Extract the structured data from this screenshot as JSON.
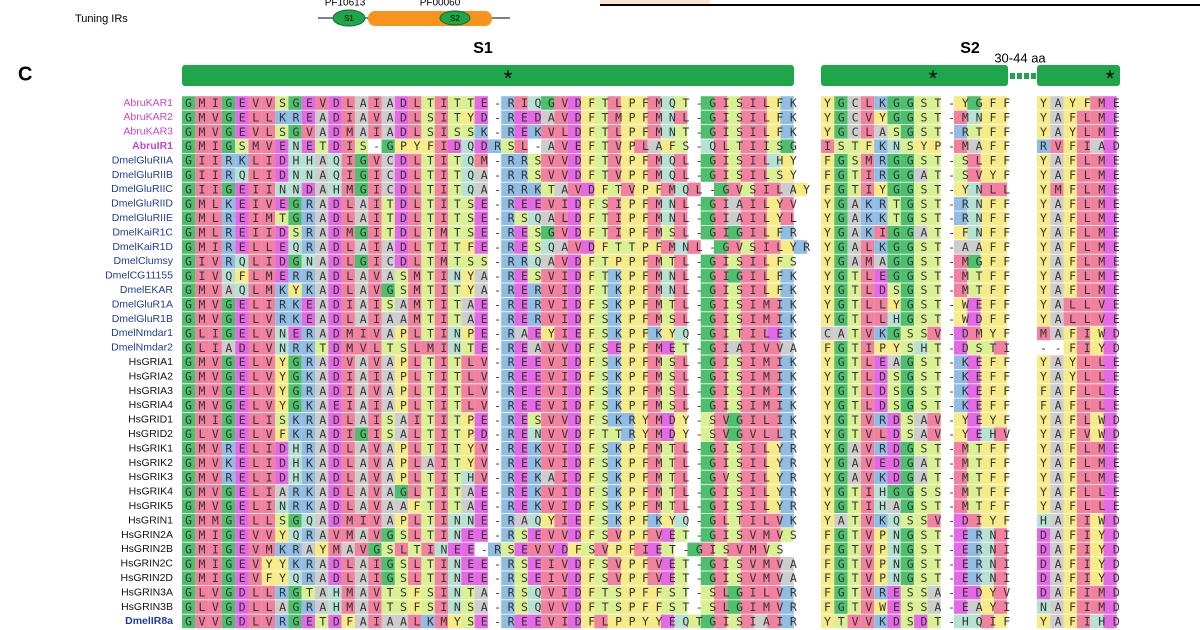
{
  "header": {
    "row_label": "Tuning IRs",
    "domains": [
      {
        "id": "PF10613",
        "segment": "S1"
      },
      {
        "id": "PF00060",
        "segment": "S2"
      }
    ]
  },
  "panel_label": "C",
  "segments": {
    "s1": "S1",
    "s2": "S2",
    "gap": "30-44 aa",
    "marker": "*"
  },
  "alignment": {
    "rows": [
      {
        "name": "AbruKAR1",
        "color": "#c845c8",
        "bold": false,
        "s1": "GMIGEVVSGEVDLAIADLTITTE-RIQGVDFTLPFMQT-GISILFK",
        "s2": "YGCLKGGST-YGFF",
        "s3": "YAYFME"
      },
      {
        "name": "AbruKAR2",
        "color": "#c845c8",
        "bold": false,
        "s1": "GMVGELLKREADIAVADLSITYD-REDAVDFTMPFMNL-GISILFK",
        "s2": "YGCVYGGST-MNFF",
        "s3": "YAFLME"
      },
      {
        "name": "AbruKAR3",
        "color": "#c845c8",
        "bold": false,
        "s1": "GMVGEVLSGVADMAIADLSISSK-REKVLDFTLPFMNT-GISILFK",
        "s2": "YGCLASGST-RTFF",
        "s3": "YAYLME"
      },
      {
        "name": "AbruIR1",
        "color": "#c845c8",
        "bold": true,
        "s1": "GMIGSMVENETDIS-GPYFIDQDRSL-AVEFTVPLAFS-QLTIISG",
        "s2": "ISTFKNSYP-MAFF",
        "s3": "RVFIAD"
      },
      {
        "name": "DmelGluRIIA",
        "color": "#1f3c9c",
        "bold": false,
        "s1": "GIIRKLIDHHAQIGVCDLTITQM-RRSVVDFTVPFMQL-GISILHY",
        "s2": "FGSMRGGST-SLFF",
        "s3": "YAFLME"
      },
      {
        "name": "DmelGluRIIB",
        "color": "#1f3c9c",
        "bold": false,
        "s1": "GIIRQLIDNNAQIGICDLTITQA-RRSVVDFTVPFMQL-GISILSY",
        "s2": "FGTIRGGAT-SVYF",
        "s3": "YAFLME"
      },
      {
        "name": "DmelGluRIIC",
        "color": "#1f3c9c",
        "bold": false,
        "s1": "GIIGEIINNDAHMGICDLTITQA-RRKTAVDFTVPFMQL-GVSILAY",
        "s2": "FGTIYGGST-YNLL",
        "s3": "YMFLME"
      },
      {
        "name": "DmelGluRIID",
        "color": "#1f3c9c",
        "bold": false,
        "s1": "GMLKEIVEGRADLAITDLTITSE-REEVIDFSIPFMNL-GIAILYV",
        "s2": "YGAKRTGST-RNFF",
        "s3": "YAFLME"
      },
      {
        "name": "DmelGluRIIE",
        "color": "#1f3c9c",
        "bold": false,
        "s1": "GMLREIMTGRADLAITDLTITSE-RSQALDFTIPFMNL-GIAILYL",
        "s2": "YGAKKTGST-RNFF",
        "s3": "YAFLME"
      },
      {
        "name": "DmelKaiR1C",
        "color": "#1f3c9c",
        "bold": false,
        "s1": "GMLREIIDSRADMGITDLTMTSE-RESGVDFTIPFMSL-GIGILFR",
        "s2": "YGAKIGGAT-FNFF",
        "s3": "YAFLME"
      },
      {
        "name": "DmelKaiR1D",
        "color": "#1f3c9c",
        "bold": false,
        "s1": "GMIRELLEQRADLAIADLTITFE-RESQAVDFTTPFMNL-GVSILYR",
        "s2": "YGALKGGST-AAFF",
        "s3": "YAFLME"
      },
      {
        "name": "DmelClumsy",
        "color": "#1f3c9c",
        "bold": false,
        "s1": "GIVRQLIDGNADLGICDLTMTSS-RRQAVDFTPPFMTL-GISILFS",
        "s2": "YGAMAGGST-MGFF",
        "s3": "YAFLME"
      },
      {
        "name": "DmelCG11155",
        "color": "#1f3c9c",
        "bold": false,
        "s1": "GIVQFLMERRADLAVASMTINYA-RESVIDFTKPFMNL-GIGILFK",
        "s2": "YGTLEGGST-MTFF",
        "s3": "YAFLME"
      },
      {
        "name": "DmelEKAR",
        "color": "#1f3c9c",
        "bold": false,
        "s1": "GMVAQLMKYKADLAVGSMTITYA-RERVIDFTKPFMNL-GISILFK",
        "s2": "YGTLDSGST-MTFF",
        "s3": "YAFLME"
      },
      {
        "name": "DmelGluR1A",
        "color": "#1f3c9c",
        "bold": false,
        "s1": "GMVGELIRKEADIAISAMTITAE-RERVIDFSKPFMTL-GISIMIK",
        "s2": "YGTLLYGST-WEFF",
        "s3": "YALLVE"
      },
      {
        "name": "DmelGluR1B",
        "color": "#1f3c9c",
        "bold": false,
        "s1": "GMVGELVRKEADLAIAAMTITAE-RERVIDFSKPFMSL-GISIMIK",
        "s2": "YGTLLHGST-WDFF",
        "s3": "YALLVE"
      },
      {
        "name": "DmelNmdar1",
        "color": "#1f3c9c",
        "bold": false,
        "s1": "GLIGELVNERADMIVAPLTINPE-RAEYIEFSKPFKYQ-GITILEK",
        "s2": "CATVKGSSV-DMYF",
        "s3": "MAFIWD"
      },
      {
        "name": "DmelNmdar2",
        "color": "#1f3c9c",
        "bold": false,
        "s1": "GLIADLVNRKTDMVLTSLMINTE-REAVVDFSEPFMET-GIAIVVA",
        "s2": "FGTIPYSHT-DSTI",
        "s3": "--FIYD"
      },
      {
        "name": "HsGRIA1",
        "color": "#111111",
        "bold": false,
        "s1": "GMVGELVYGRADVAVAPLTITLV-REEVIDFSKPFMSL-GISIMIK",
        "s2": "YGTLEAGST-KEFF",
        "s3": "YAYLLE"
      },
      {
        "name": "HsGRIA2",
        "color": "#111111",
        "bold": false,
        "s1": "GMVGELVYGKADIAIAPLTITLV-REEVIDFSKPFMSL-GISIMIK",
        "s2": "YGTLDSGST-KEFF",
        "s3": "YAYLLE"
      },
      {
        "name": "HsGRIA3",
        "color": "#111111",
        "bold": false,
        "s1": "GMVGELVYGRADIAVAPLTITLV-REEVIDFSKPFMSL-GISIMIK",
        "s2": "YGTLDSGST-KEFF",
        "s3": "FAFLLE"
      },
      {
        "name": "HsGRIA4",
        "color": "#111111",
        "bold": false,
        "s1": "GMVGELVYGKAEIAIAPLTITLV-REEVIDFSKPFMSL-GISIMIK",
        "s2": "YGTLDSGST-KEFF",
        "s3": "FAFLLE"
      },
      {
        "name": "HsGRID1",
        "color": "#111111",
        "bold": false,
        "s1": "GMIGELISKRADLAISAITITPE-RESVVDFSKRYMDY-SVGILIK",
        "s2": "YGTVRDSAV-YEYF",
        "s3": "YAFLWD"
      },
      {
        "name": "HsGRID2",
        "color": "#111111",
        "bold": false,
        "s1": "GLVGELVFKRADIGISALTITPD-RENVVDFTTRYMDY-SVGVLLR",
        "s2": "YGTVLDSAV-YEHV",
        "s3": "YAFVWD"
      },
      {
        "name": "HsGRIK1",
        "color": "#111111",
        "bold": false,
        "s1": "GMVRELIDHRADLAVAPLTITYV-REKVIDFSKPFMTL-GISILYR",
        "s2": "YGAVRDGST-MTFF",
        "s3": "YAFLME"
      },
      {
        "name": "HsGRIK2",
        "color": "#111111",
        "bold": false,
        "s1": "GMVKELIDHKADLAVAPLAITYV-REKVIDFSKPFMTL-GISILYR",
        "s2": "YGAVEDGAT-MTFF",
        "s3": "YAFLME"
      },
      {
        "name": "HsGRIK3",
        "color": "#111111",
        "bold": false,
        "s1": "GMVRELIDHKADLAVAPLTITHV-REKAIDFSKPFMTL-GVSILYR",
        "s2": "YGAVKDGAT-MTFF",
        "s3": "YAFLME"
      },
      {
        "name": "HsGRIK4",
        "color": "#111111",
        "bold": false,
        "s1": "GMVGELIARKADLAVAGLTITAE-REKVIDFSKPFMTL-GISILYR",
        "s2": "YGTIHGGSS-MTFF",
        "s3": "YAFLLE"
      },
      {
        "name": "HsGRIK5",
        "color": "#111111",
        "bold": false,
        "s1": "GMVGELINRKADLAVAAFTITAE-REKVIDFSKPFMTL-GISILYR",
        "s2": "YGTIHAGST-MTFF",
        "s3": "YAFLLE"
      },
      {
        "name": "HsGRIN1",
        "color": "#111111",
        "bold": false,
        "s1": "GMMGELLSGQADMIVAPLTINNE-RAQYIEFSKPFKYQ-GLTILVK",
        "s2": "YATVKQSSV-DIYF",
        "s3": "HAFIWD"
      },
      {
        "name": "HsGRIN2A",
        "color": "#111111",
        "bold": false,
        "s1": "GMIGEVVYQRAVMAVGSLTINEE-RSEVVDFSVPFVET-GISVMVS",
        "s2": "FGTVPNGST-ERNI",
        "s3": "DAFIYD"
      },
      {
        "name": "HsGRIN2B",
        "color": "#111111",
        "bold": false,
        "s1": "GMIGEVMKRAYMAVGSLTINEE-RSEVVDFSVPFIET-GISVMVS",
        "s2": "FGTVPNGST-ERNI",
        "s3": "DAFIYD"
      },
      {
        "name": "HsGRIN2C",
        "color": "#111111",
        "bold": false,
        "s1": "GMIGEVYYKRADLAIGSLTINEE-RSEIVDFSVPFVET-GISVMVA",
        "s2": "FGTVPNGST-ERNI",
        "s3": "DAFIYD"
      },
      {
        "name": "HsGRIN2D",
        "color": "#111111",
        "bold": false,
        "s1": "GMIGEVFYQRADLAIGSLTINEE-RSEIVDFSVPFVET-GISVMVA",
        "s2": "FGTVPNGST-EKNI",
        "s3": "DAFIYD"
      },
      {
        "name": "HsGRIN3A",
        "color": "#111111",
        "bold": false,
        "s1": "GLVGDLLRGTAHMAVTSFSINTA-RSQVIDFTSPFFST-SLGILVR",
        "s2": "FGTVRESSA-EDYV",
        "s3": "DAFIMD"
      },
      {
        "name": "HsGRIN3B",
        "color": "#111111",
        "bold": false,
        "s1": "GLVGDLLAGRAHMAVTSFSINSA-RSQVVDFTSPFFST-SLGIMVR",
        "s2": "FGTVWESSA-EAYI",
        "s3": "NAFIMD"
      },
      {
        "name": "DmelIR8a",
        "color": "#1f3c9c",
        "bold": true,
        "s1": "GVVGDLVRGETDFAIAALKMYSE-REEVIDFLPPYYEQTGISIAIR",
        "s2": "YTVVKDSDT-HQIF",
        "s3": "YAFIHD"
      }
    ]
  }
}
